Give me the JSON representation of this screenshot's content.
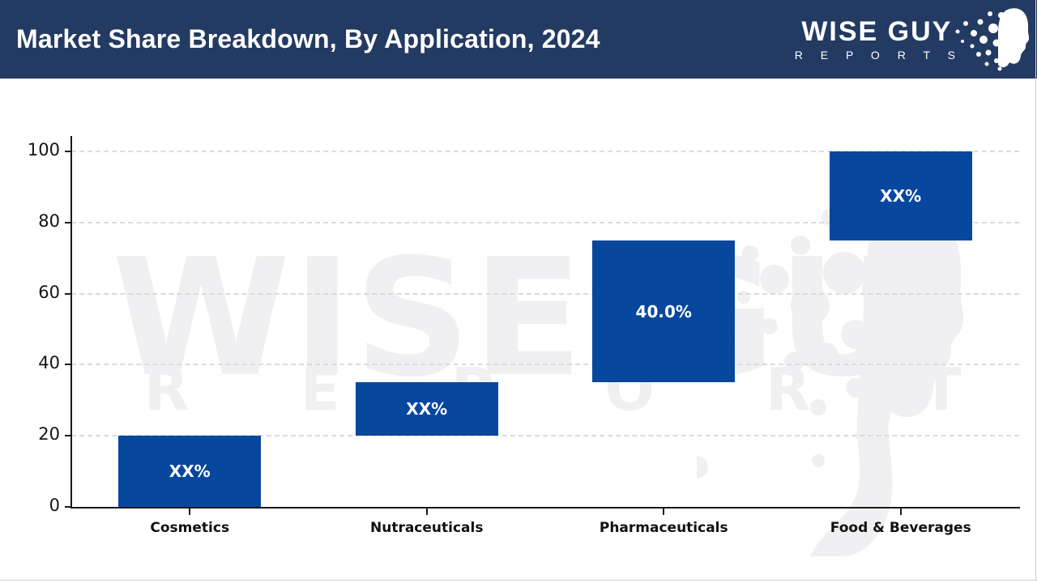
{
  "header": {
    "title": "Market Share Breakdown, By Application, 2024",
    "background_color": "#233A62",
    "logo": {
      "wordmark": "WISE GUY",
      "subtext": "R E P O R T S"
    }
  },
  "watermark": {
    "line1": "WISE GU",
    "line2": "R E P O R T S",
    "color": "#F0F0F2"
  },
  "chart_data": {
    "type": "bar",
    "subtype": "waterfall",
    "title": "Market Share Breakdown, By Application, 2024",
    "xlabel": "",
    "ylabel": "",
    "categories": [
      "Cosmetics",
      "Nutraceuticals",
      "Pharmaceuticals",
      "Food & Beverages"
    ],
    "segments": [
      {
        "category": "Cosmetics",
        "start": 0,
        "end": 20,
        "value": 20,
        "label": "XX%"
      },
      {
        "category": "Nutraceuticals",
        "start": 20,
        "end": 35,
        "value": 15,
        "label": "XX%"
      },
      {
        "category": "Pharmaceuticals",
        "start": 35,
        "end": 75,
        "value": 40,
        "label": "40.0%"
      },
      {
        "category": "Food & Beverages",
        "start": 75,
        "end": 100,
        "value": 25,
        "label": "XX%"
      }
    ],
    "ylim": [
      0,
      100
    ],
    "yticks": [
      0,
      20,
      40,
      60,
      80,
      100
    ],
    "grid": "horizontal-dashed",
    "legend": "none",
    "bar_color": "#08479E",
    "bar_label_color": "#FFFFFF"
  }
}
